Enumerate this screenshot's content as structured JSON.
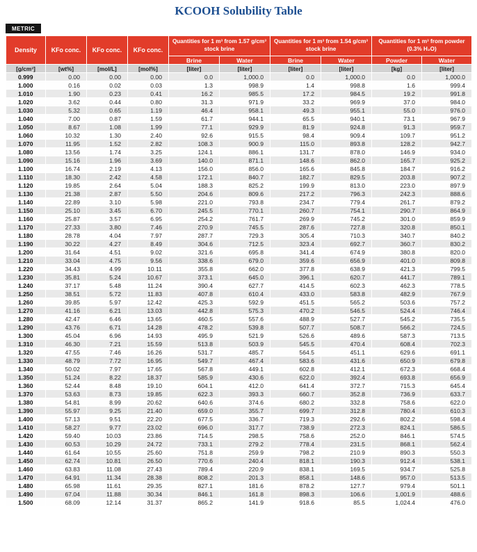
{
  "title": "KCOOH Solubility Table",
  "badge": {
    "label": "METRIC"
  },
  "theme": {
    "accent-red": "#e23c2a",
    "title-blue": "#1d4f91",
    "badge-bg": "#161616",
    "unit-row-bg": "#d2d2d2",
    "row-alt-bg": "#e9e9e9"
  },
  "table": {
    "simple_columns": [
      {
        "title": "Density",
        "unit": "[g/cm³]"
      },
      {
        "title": "KFo conc.",
        "unit": "[wt%]"
      },
      {
        "title": "KFo conc.",
        "unit": "[mol/L]"
      },
      {
        "title": "KFo conc.",
        "unit": "[mol%]"
      }
    ],
    "groups": [
      {
        "title": "Quantities for 1 m³ from 1.57 g/cm³ stock brine",
        "subs": [
          "Brine",
          "Water"
        ],
        "units": [
          "[liter]",
          "[liter]"
        ]
      },
      {
        "title": "Quantities for 1 m³ from 1.54 g/cm³ stock brine",
        "subs": [
          "Brine",
          "Water"
        ],
        "units": [
          "[liter]",
          "[liter]"
        ]
      },
      {
        "title": "Quantities for 1 m³ from powder (0.3% H₂O)",
        "subs": [
          "Powder",
          "Water"
        ],
        "units": [
          "[kg]",
          "[liter]"
        ]
      }
    ],
    "rows": [
      [
        "0.999",
        "0.00",
        "0.00",
        "0.00",
        "0.0",
        "1,000.0",
        "0.0",
        "1,000.0",
        "0.0",
        "1,000.0"
      ],
      [
        "1.000",
        "0.16",
        "0.02",
        "0.03",
        "1.3",
        "998.9",
        "1.4",
        "998.8",
        "1.6",
        "999.4"
      ],
      [
        "1.010",
        "1.90",
        "0.23",
        "0.41",
        "16.2",
        "985.5",
        "17.2",
        "984.5",
        "19.2",
        "991.8"
      ],
      [
        "1.020",
        "3.62",
        "0.44",
        "0.80",
        "31.3",
        "971.9",
        "33.2",
        "969.9",
        "37.0",
        "984.0"
      ],
      [
        "1.030",
        "5.32",
        "0.65",
        "1.19",
        "46.4",
        "958.1",
        "49.3",
        "955.1",
        "55.0",
        "976.0"
      ],
      [
        "1.040",
        "7.00",
        "0.87",
        "1.59",
        "61.7",
        "944.1",
        "65.5",
        "940.1",
        "73.1",
        "967.9"
      ],
      [
        "1.050",
        "8.67",
        "1.08",
        "1.99",
        "77.1",
        "929.9",
        "81.9",
        "924.8",
        "91.3",
        "959.7"
      ],
      [
        "1.060",
        "10.32",
        "1.30",
        "2.40",
        "92.6",
        "915.5",
        "98.4",
        "909.4",
        "109.7",
        "951.2"
      ],
      [
        "1.070",
        "11.95",
        "1.52",
        "2.82",
        "108.3",
        "900.9",
        "115.0",
        "893.8",
        "128.2",
        "942.7"
      ],
      [
        "1.080",
        "13.56",
        "1.74",
        "3.25",
        "124.1",
        "886.1",
        "131.7",
        "878.0",
        "146.9",
        "934.0"
      ],
      [
        "1.090",
        "15.16",
        "1.96",
        "3.69",
        "140.0",
        "871.1",
        "148.6",
        "862.0",
        "165.7",
        "925.2"
      ],
      [
        "1.100",
        "16.74",
        "2.19",
        "4.13",
        "156.0",
        "856.0",
        "165.6",
        "845.8",
        "184.7",
        "916.2"
      ],
      [
        "1.110",
        "18.30",
        "2.42",
        "4.58",
        "172.1",
        "840.7",
        "182.7",
        "829.5",
        "203.8",
        "907.2"
      ],
      [
        "1.120",
        "19.85",
        "2.64",
        "5.04",
        "188.3",
        "825.2",
        "199.9",
        "813.0",
        "223.0",
        "897.9"
      ],
      [
        "1.130",
        "21.38",
        "2.87",
        "5.50",
        "204.6",
        "809.6",
        "217.2",
        "796.3",
        "242.3",
        "888.6"
      ],
      [
        "1.140",
        "22.89",
        "3.10",
        "5.98",
        "221.0",
        "793.8",
        "234.7",
        "779.4",
        "261.7",
        "879.2"
      ],
      [
        "1.150",
        "25.10",
        "3.45",
        "6.70",
        "245.5",
        "770.1",
        "260.7",
        "754.1",
        "290.7",
        "864.9"
      ],
      [
        "1.160",
        "25.87",
        "3.57",
        "6.95",
        "254.2",
        "761.7",
        "269.9",
        "745.2",
        "301.0",
        "859.9"
      ],
      [
        "1.170",
        "27.33",
        "3.80",
        "7.46",
        "270.9",
        "745.5",
        "287.6",
        "727.8",
        "320.8",
        "850.1"
      ],
      [
        "1.180",
        "28.78",
        "4.04",
        "7.97",
        "287.7",
        "729.3",
        "305.4",
        "710.3",
        "340.7",
        "840.2"
      ],
      [
        "1.190",
        "30.22",
        "4.27",
        "8.49",
        "304.6",
        "712.5",
        "323.4",
        "692.7",
        "360.7",
        "830.2"
      ],
      [
        "1.200",
        "31.64",
        "4.51",
        "9.02",
        "321.6",
        "695.8",
        "341.4",
        "674.9",
        "380.8",
        "820.0"
      ],
      [
        "1.210",
        "33.04",
        "4.75",
        "9.56",
        "338.6",
        "679.0",
        "359.6",
        "656.9",
        "401.0",
        "809.8"
      ],
      [
        "1.220",
        "34.43",
        "4.99",
        "10.11",
        "355.8",
        "662.0",
        "377.8",
        "638.9",
        "421.3",
        "799.5"
      ],
      [
        "1.230",
        "35.81",
        "5.24",
        "10.67",
        "373.1",
        "645.0",
        "396.1",
        "620.7",
        "441.7",
        "789.1"
      ],
      [
        "1.240",
        "37.17",
        "5.48",
        "11.24",
        "390.4",
        "627.7",
        "414.5",
        "602.3",
        "462.3",
        "778.5"
      ],
      [
        "1.250",
        "38.51",
        "5.72",
        "11.83",
        "407.8",
        "610.4",
        "433.0",
        "583.8",
        "482.9",
        "767.9"
      ],
      [
        "1.260",
        "39.85",
        "5.97",
        "12.42",
        "425.3",
        "592.9",
        "451.5",
        "565.2",
        "503.6",
        "757.2"
      ],
      [
        "1.270",
        "41.16",
        "6.21",
        "13.03",
        "442.8",
        "575.3",
        "470.2",
        "546.5",
        "524.4",
        "746.4"
      ],
      [
        "1.280",
        "42.47",
        "6.46",
        "13.65",
        "460.5",
        "557.6",
        "488.9",
        "527.7",
        "545.2",
        "735.5"
      ],
      [
        "1.290",
        "43.76",
        "6.71",
        "14.28",
        "478.2",
        "539.8",
        "507.7",
        "508.7",
        "566.2",
        "724.5"
      ],
      [
        "1.300",
        "45.04",
        "6.96",
        "14.93",
        "495.9",
        "521.9",
        "526.6",
        "489.6",
        "587.3",
        "713.5"
      ],
      [
        "1.310",
        "46.30",
        "7.21",
        "15.59",
        "513.8",
        "503.9",
        "545.5",
        "470.4",
        "608.4",
        "702.3"
      ],
      [
        "1.320",
        "47.55",
        "7.46",
        "16.26",
        "531.7",
        "485.7",
        "564.5",
        "451.1",
        "629.6",
        "691.1"
      ],
      [
        "1.330",
        "48.79",
        "7.72",
        "16.95",
        "549.7",
        "467.4",
        "583.6",
        "431.6",
        "650.9",
        "679.8"
      ],
      [
        "1.340",
        "50.02",
        "7.97",
        "17.65",
        "567.8",
        "449.1",
        "602.8",
        "412.1",
        "672.3",
        "668.4"
      ],
      [
        "1.350",
        "51.24",
        "8.22",
        "18.37",
        "585.9",
        "430.6",
        "622.0",
        "392.4",
        "693.8",
        "656.9"
      ],
      [
        "1.360",
        "52.44",
        "8.48",
        "19.10",
        "604.1",
        "412.0",
        "641.4",
        "372.7",
        "715.3",
        "645.4"
      ],
      [
        "1.370",
        "53.63",
        "8.73",
        "19.85",
        "622.3",
        "393.3",
        "660.7",
        "352.8",
        "736.9",
        "633.7"
      ],
      [
        "1.380",
        "54.81",
        "8.99",
        "20.62",
        "640.6",
        "374.6",
        "680.2",
        "332.8",
        "758.6",
        "622.0"
      ],
      [
        "1.390",
        "55.97",
        "9.25",
        "21.40",
        "659.0",
        "355.7",
        "699.7",
        "312.8",
        "780.4",
        "610.3"
      ],
      [
        "1.400",
        "57.13",
        "9.51",
        "22.20",
        "677.5",
        "336.7",
        "719.3",
        "292.6",
        "802.2",
        "598.4"
      ],
      [
        "1.410",
        "58.27",
        "9.77",
        "23.02",
        "696.0",
        "317.7",
        "738.9",
        "272.3",
        "824.1",
        "586.5"
      ],
      [
        "1.420",
        "59.40",
        "10.03",
        "23.86",
        "714.5",
        "298.5",
        "758.6",
        "252.0",
        "846.1",
        "574.5"
      ],
      [
        "1.430",
        "60.53",
        "10.29",
        "24.72",
        "733.1",
        "279.2",
        "778.4",
        "231.5",
        "868.1",
        "562.4"
      ],
      [
        "1.440",
        "61.64",
        "10.55",
        "25.60",
        "751.8",
        "259.9",
        "798.2",
        "210.9",
        "890.3",
        "550.3"
      ],
      [
        "1.450",
        "62.74",
        "10.81",
        "26.50",
        "770.6",
        "240.4",
        "818.1",
        "190.3",
        "912.4",
        "538.1"
      ],
      [
        "1.460",
        "63.83",
        "11.08",
        "27.43",
        "789.4",
        "220.9",
        "838.1",
        "169.5",
        "934.7",
        "525.8"
      ],
      [
        "1.470",
        "64.91",
        "11.34",
        "28.38",
        "808.2",
        "201.3",
        "858.1",
        "148.6",
        "957.0",
        "513.5"
      ],
      [
        "1.480",
        "65.98",
        "11.61",
        "29.35",
        "827.1",
        "181.6",
        "878.2",
        "127.7",
        "979.4",
        "501.1"
      ],
      [
        "1.490",
        "67.04",
        "11.88",
        "30.34",
        "846.1",
        "161.8",
        "898.3",
        "106.6",
        "1,001.9",
        "488.6"
      ],
      [
        "1.500",
        "68.09",
        "12.14",
        "31.37",
        "865.2",
        "141.9",
        "918.6",
        "85.5",
        "1,024.4",
        "476.0"
      ]
    ]
  }
}
